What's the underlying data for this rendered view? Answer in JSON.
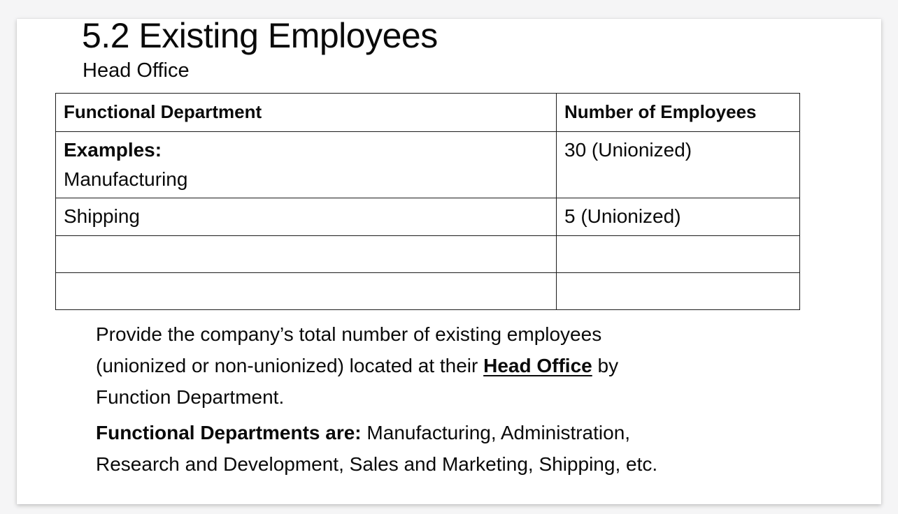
{
  "colors": {
    "canvas_background": "#f5f5f6",
    "page_background": "#ffffff",
    "text": "#0a0a0a",
    "table_border": "#1c1c1c"
  },
  "page": {
    "title": "5.2 Existing Employees",
    "subtitle": "Head Office"
  },
  "table": {
    "columns": [
      "Functional Department",
      "Number of Employees"
    ],
    "rows": [
      {
        "department_lines": [
          [
            {
              "text": "Examples:",
              "bold": true
            }
          ],
          [
            {
              "text": "Manufacturing"
            }
          ]
        ],
        "employees": "30 (Unionized)"
      },
      {
        "department_lines": [
          [
            {
              "text": "Shipping"
            }
          ]
        ],
        "employees": "5 (Unionized)"
      },
      {
        "department_lines": [],
        "employees": ""
      },
      {
        "department_lines": [],
        "employees": ""
      }
    ]
  },
  "paragraphs": [
    {
      "lines": [
        [
          {
            "text": "Provide the company’s total number of existing employees"
          }
        ],
        [
          {
            "text": "(unionized or non-unionized) located at their "
          },
          {
            "text": "Head Office",
            "bold": true,
            "underline": true
          },
          {
            "text": " by"
          }
        ],
        [
          {
            "text": "Function Department."
          }
        ]
      ]
    },
    {
      "lines": [
        [
          {
            "text": "Functional Departments are:",
            "bold": true
          },
          {
            "text": " Manufacturing, Administration,"
          }
        ],
        [
          {
            "text": "Research and Development, Sales and Marketing, Shipping, etc."
          }
        ]
      ]
    }
  ]
}
